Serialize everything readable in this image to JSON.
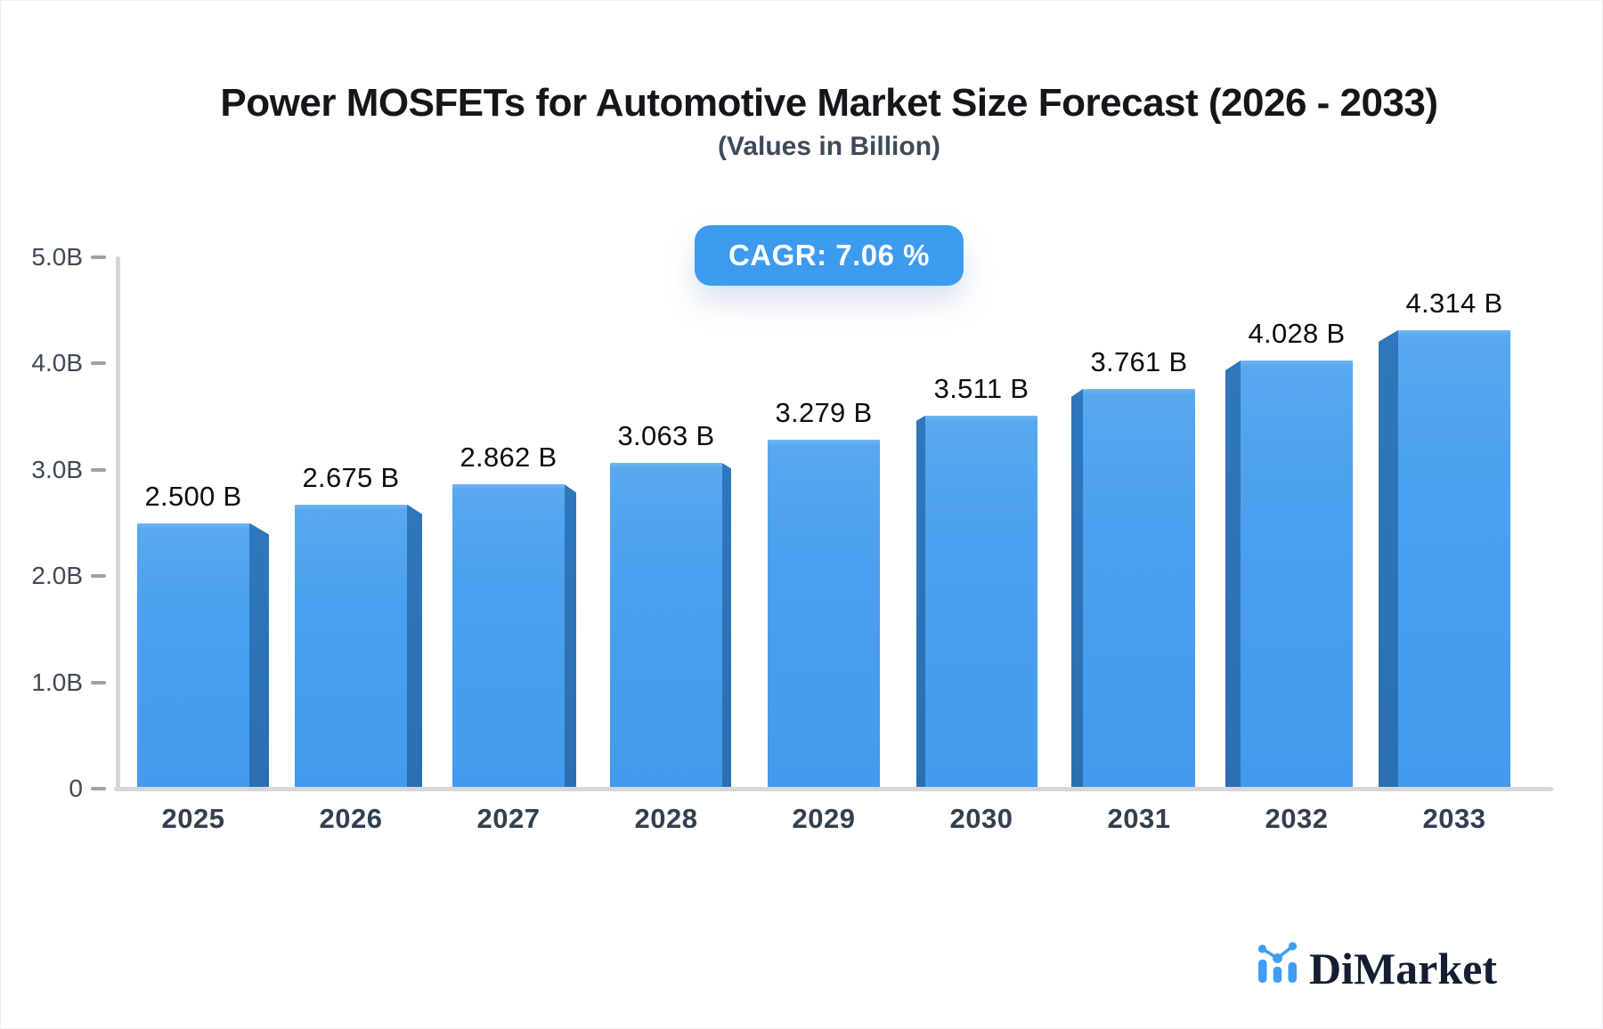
{
  "header": {
    "title": "Power MOSFETs for Automotive Market Size Forecast (2026 - 2033)",
    "subtitle": "(Values in Billion)",
    "cagr_badge": "CAGR: 7.06 %"
  },
  "chart_data": {
    "type": "bar",
    "title": "Power MOSFETs for Automotive Market Size Forecast (2026 - 2033)",
    "subtitle": "(Values in Billion)",
    "unit": "Billion",
    "cagr_percent": 7.06,
    "categories": [
      "2025",
      "2026",
      "2027",
      "2028",
      "2029",
      "2030",
      "2031",
      "2032",
      "2033"
    ],
    "values": [
      2.5,
      2.675,
      2.862,
      3.063,
      3.279,
      3.511,
      3.761,
      4.028,
      4.314
    ],
    "value_labels": [
      "2.500 B",
      "2.675 B",
      "2.862 B",
      "3.063 B",
      "3.279 B",
      "3.511 B",
      "3.761 B",
      "4.028 B",
      "4.314 B"
    ],
    "ylim": [
      0,
      5
    ],
    "yticks": [
      {
        "label": "5.0B",
        "value": 5.0
      },
      {
        "label": "4.0B",
        "value": 4.0
      },
      {
        "label": "3.0B",
        "value": 3.0
      },
      {
        "label": "2.0B",
        "value": 2.0
      },
      {
        "label": "1.0B",
        "value": 1.0
      },
      {
        "label": "0",
        "value": 0.0
      }
    ],
    "grid": false,
    "legend": false,
    "colors": {
      "bar_face": "#4aa1ee",
      "bar_face_highlight": "#74b6f3",
      "bar_side": "#2e74b8",
      "accent": "#3d9bef",
      "axis_line": "#d3d6da",
      "label_text": "#0c0d0f",
      "tick_text": "#3f4956"
    }
  },
  "footer": {
    "logo_text": "DiMarket"
  }
}
